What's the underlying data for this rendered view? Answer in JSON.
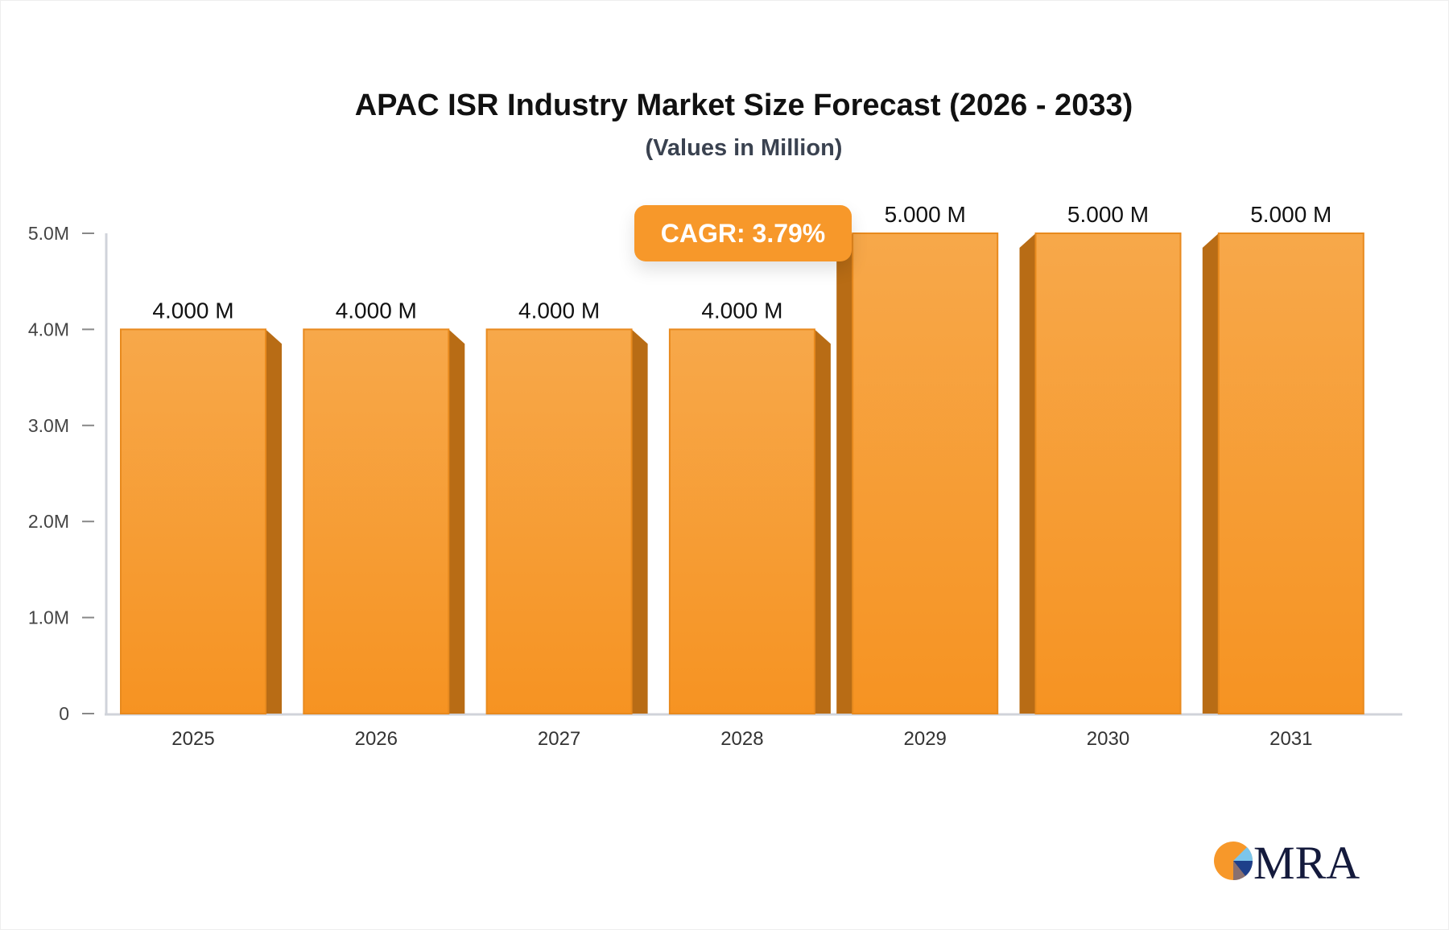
{
  "chart_data": {
    "type": "bar",
    "title": "APAC ISR Industry Market Size Forecast (2026 - 2033)",
    "subtitle": "(Values in Million)",
    "categories": [
      "2025",
      "2026",
      "2027",
      "2028",
      "2029",
      "2030",
      "2031"
    ],
    "values": [
      4.0,
      4.0,
      4.0,
      4.0,
      5.0,
      5.0,
      5.0
    ],
    "data_labels": [
      "4.000 M",
      "4.000 M",
      "4.000 M",
      "4.000 M",
      "5.000 M",
      "5.000 M",
      "5.000 M"
    ],
    "yticks": [
      "0",
      "1.0M",
      "2.0M",
      "3.0M",
      "4.0M",
      "5.0M"
    ],
    "ytick_values": [
      0,
      1,
      2,
      3,
      4,
      5
    ],
    "ylim": [
      0,
      5
    ],
    "grid": false,
    "bar_color": "#f7a03c",
    "bar_side_color": "#b86c15"
  },
  "annotation": {
    "cagr": "CAGR: 3.79%"
  },
  "logo": {
    "text": "MRA"
  }
}
